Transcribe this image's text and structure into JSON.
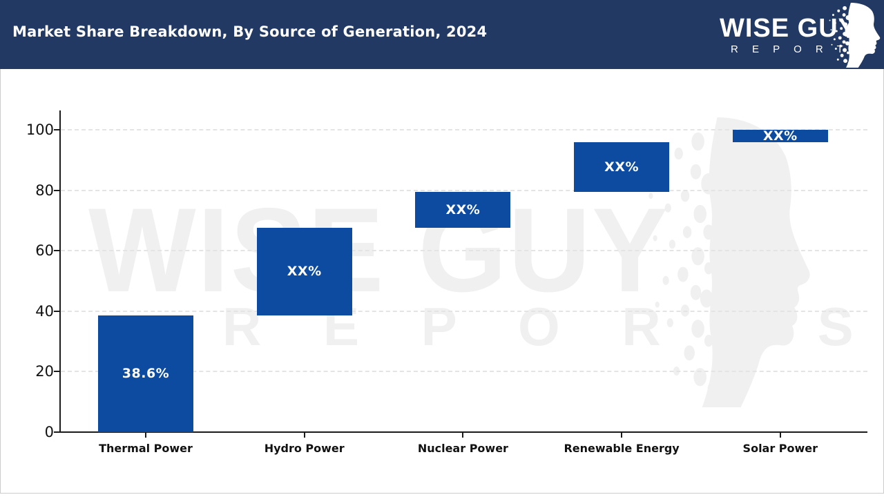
{
  "header": {
    "title": "Market Share Breakdown, By Source of Generation, 2024",
    "logo_line1": "WISE GUY",
    "logo_line2": "R E P O R T S",
    "bg_color": "#223963"
  },
  "watermark": {
    "line1": "WISE GUY",
    "line2": "REPORTS"
  },
  "chart_data": {
    "type": "bar",
    "subtype": "waterfall",
    "title": "Market Share Breakdown, By Source of Generation, 2024",
    "xlabel": "",
    "ylabel": "",
    "categories": [
      "Thermal Power",
      "Hydro Power",
      "Nuclear Power",
      "Renewable Energy",
      "Solar Power"
    ],
    "segments": [
      {
        "category": "Thermal Power",
        "start": 0,
        "end": 38.6,
        "label": "38.6%"
      },
      {
        "category": "Hydro Power",
        "start": 38.6,
        "end": 67.5,
        "label": "XX%"
      },
      {
        "category": "Nuclear Power",
        "start": 67.5,
        "end": 79.5,
        "label": "XX%"
      },
      {
        "category": "Renewable Energy",
        "start": 79.5,
        "end": 96.0,
        "label": "XX%"
      },
      {
        "category": "Solar Power",
        "start": 96.0,
        "end": 100.0,
        "label": "XX%"
      }
    ],
    "yticks": [
      0,
      20,
      40,
      60,
      80,
      100
    ],
    "ylim": [
      0,
      106
    ],
    "grid": "horizontal-dashed",
    "legend": "none",
    "bar_color": "#0C4BA0",
    "bar_label_color": "#ffffff",
    "axis_color": "#1a1a1a"
  }
}
